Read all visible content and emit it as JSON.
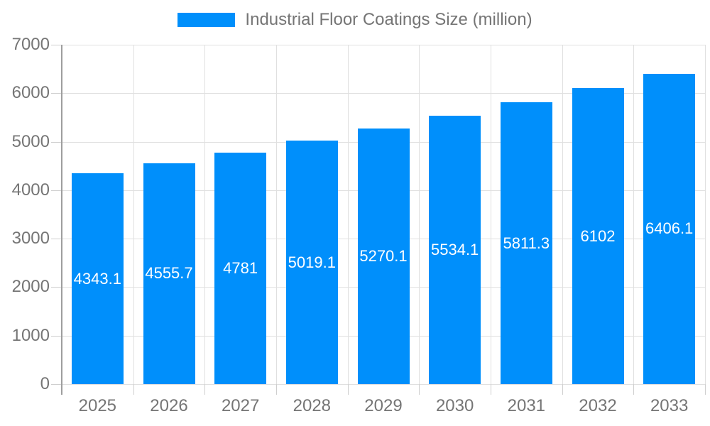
{
  "legend": {
    "label": "Industrial Floor Coatings Size (million)",
    "swatch_color": "#008FFB"
  },
  "chart_data": {
    "type": "bar",
    "title": "Industrial Floor Coatings Size (million)",
    "categories": [
      "2025",
      "2026",
      "2027",
      "2028",
      "2029",
      "2030",
      "2031",
      "2032",
      "2033"
    ],
    "values": [
      4343.1,
      4555.7,
      4781,
      5019.1,
      5270.1,
      5534.1,
      5811.3,
      6102,
      6406.1
    ],
    "series": [
      {
        "name": "Industrial Floor Coatings Size (million)",
        "values": [
          4343.1,
          4555.7,
          4781,
          5019.1,
          5270.1,
          5534.1,
          5811.3,
          6102,
          6406.1
        ]
      }
    ],
    "xlabel": "",
    "ylabel": "",
    "ylim": [
      0,
      7000
    ],
    "yticks": [
      0,
      1000,
      2000,
      3000,
      4000,
      5000,
      6000,
      7000
    ],
    "grid": true,
    "legend_position": "top",
    "value_labels": "centered-white-inside-bars",
    "colors": {
      "bar": "#008FFB",
      "value_label": "#FFFFFF",
      "axis_text": "#757575",
      "gridline": "#E0E0E0",
      "tick": "#CFCFCF",
      "y_axis_line": "#9E9E9E"
    }
  }
}
